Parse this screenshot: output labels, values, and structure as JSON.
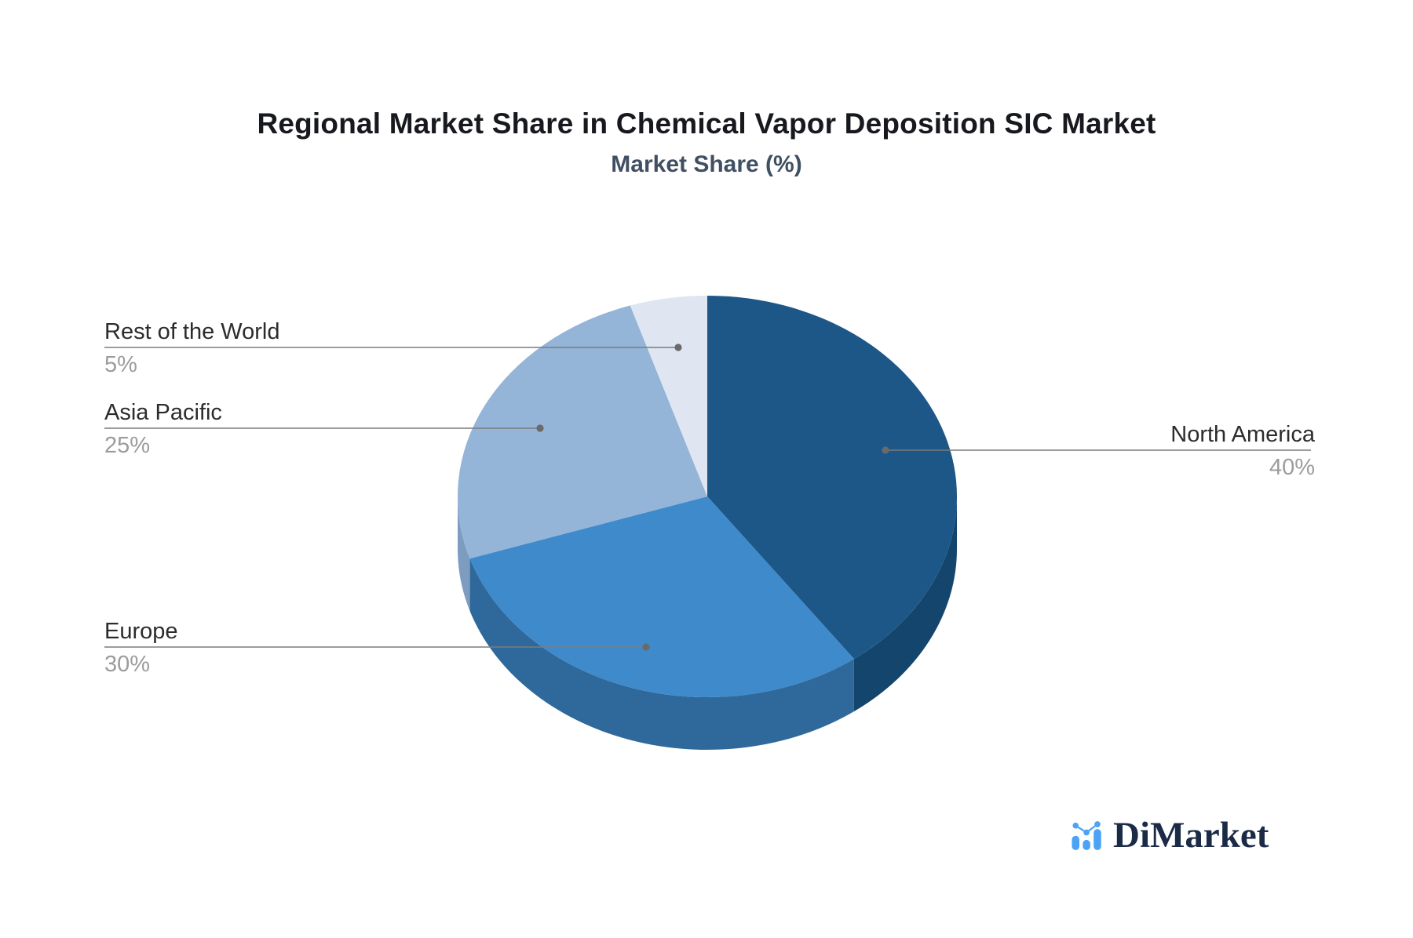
{
  "title": "Regional Market Share in Chemical Vapor Deposition SIC Market",
  "subtitle": "Market Share (%)",
  "chart_data": {
    "type": "pie",
    "is_3d": true,
    "unit": "%",
    "start_angle_deg": 0,
    "direction": "clockwise",
    "legend_position": "callout-labels",
    "slices": [
      {
        "label": "North America",
        "value": 40,
        "display": "40%",
        "color": "#1d5787",
        "side_color": "#14456d",
        "label_side": "right"
      },
      {
        "label": "Europe",
        "value": 30,
        "display": "30%",
        "color": "#3e8acb",
        "side_color": "#2f699b",
        "label_side": "left"
      },
      {
        "label": "Asia Pacific",
        "value": 25,
        "display": "25%",
        "color": "#94b4d8",
        "side_color": "#7d9cbf",
        "label_side": "left"
      },
      {
        "label": "Rest of the World",
        "value": 5,
        "display": "5%",
        "color": "#dfe6f1",
        "side_color": "#c3cfdf",
        "label_side": "left"
      }
    ],
    "callout_line_color": "#7c7c7c",
    "callout_dot_color": "#6a6a6a",
    "label_text_color": "#2c2c2c",
    "value_text_color": "#9c9c9c"
  },
  "branding": {
    "logo_text": "DiMarket",
    "logo_icon": "bar-chart-with-trend-icon",
    "logo_icon_color": "#4ba3f5",
    "logo_text_color": "#1b2a45"
  }
}
